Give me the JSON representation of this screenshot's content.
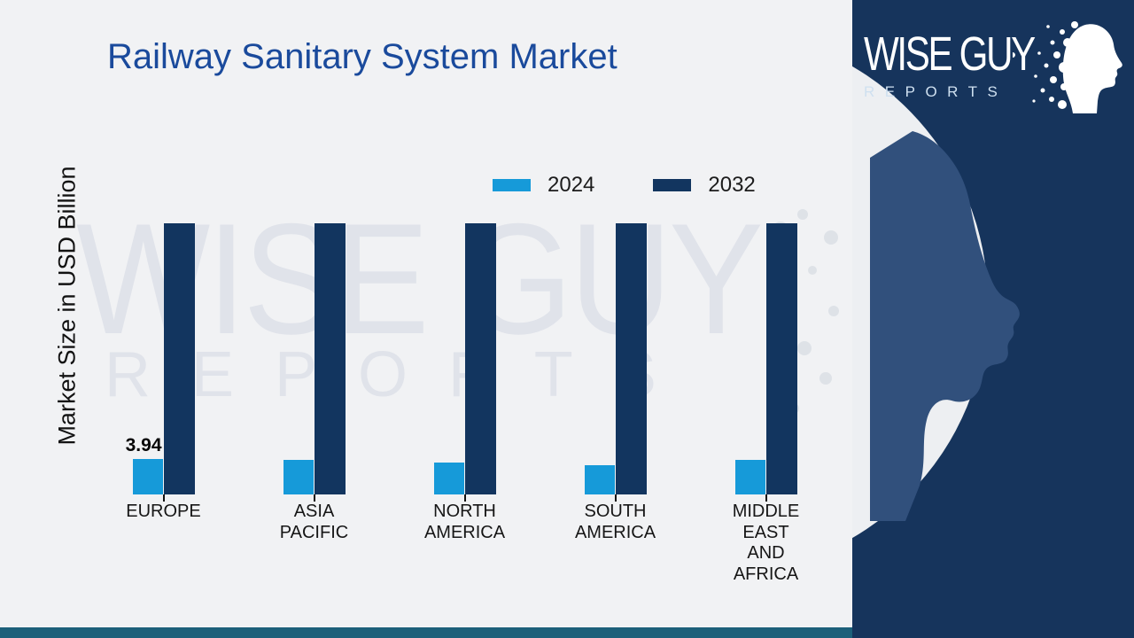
{
  "title": {
    "text": "Railway Sanitary System Market",
    "color": "#1a4a9c"
  },
  "y_axis_label": "Market Size in USD Billion",
  "legend": {
    "items": [
      {
        "label": "2024",
        "color": "#169ad9"
      },
      {
        "label": "2032",
        "color": "#12355f"
      }
    ]
  },
  "brand": {
    "name": "WISE GUY",
    "sub": "REPORTS",
    "panel_color": "#16345c"
  },
  "watermark": {
    "line1": "WISE GUY",
    "line2": "REPORTS"
  },
  "bottom_bar_color": "#1d607a",
  "chart_data": {
    "type": "bar",
    "title": "Railway Sanitary System Market",
    "xlabel": "",
    "ylabel": "Market Size in USD Billion",
    "categories": [
      "EUROPE",
      "ASIA PACIFIC",
      "NORTH AMERICA",
      "SOUTH AMERICA",
      "MIDDLE EAST AND AFRICA"
    ],
    "category_label_lines": [
      [
        "EUROPE"
      ],
      [
        "ASIA",
        "PACIFIC"
      ],
      [
        "NORTH",
        "AMERICA"
      ],
      [
        "SOUTH",
        "AMERICA"
      ],
      [
        "MIDDLE",
        "EAST",
        "AND",
        "AFRICA"
      ]
    ],
    "series": [
      {
        "name": "2024",
        "color": "#169ad9",
        "values": [
          3.94,
          3.85,
          3.55,
          3.2,
          3.8
        ]
      },
      {
        "name": "2032",
        "color": "#12355f",
        "values": [
          30,
          30,
          30,
          30,
          30
        ]
      }
    ],
    "data_labels": {
      "2024": [
        "3.94",
        null,
        null,
        null,
        null
      ],
      "2032": [
        null,
        null,
        null,
        null,
        null
      ]
    },
    "notes": "Only the EUROPE 2024 bar is labeled (3.94). All 2032 bars are drawn at identical full height with no value labels; 2024 values other than EUROPE are estimated from bar heights.",
    "ylim": [
      0,
      32
    ],
    "grid": false,
    "legend_position": "top-center"
  }
}
